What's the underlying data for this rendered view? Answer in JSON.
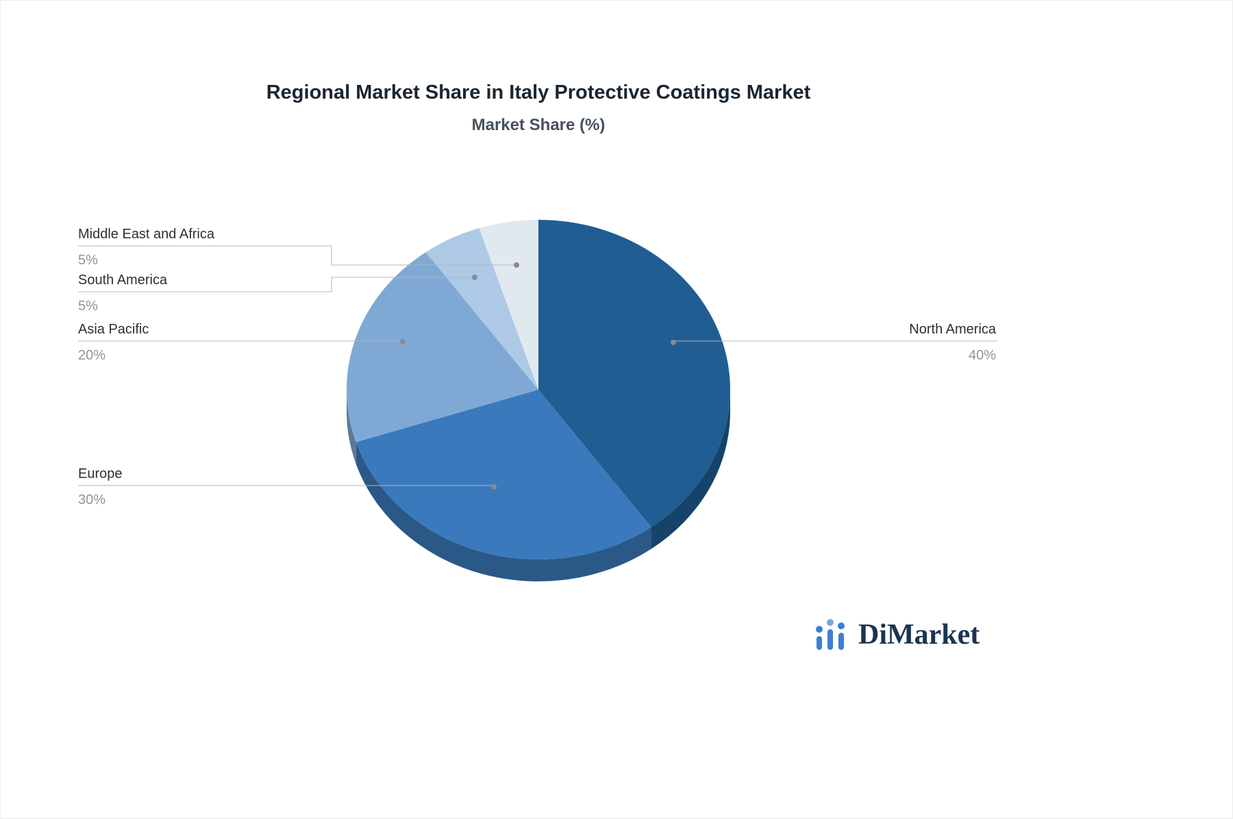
{
  "title": "Regional Market Share in Italy Protective Coatings Market",
  "subtitle": "Market Share (%)",
  "brand": {
    "name": "DiMarket",
    "icon": "bar-chart-logo-icon",
    "wordmark_color": "#1b3550",
    "icon_color": "#3b7ed2"
  },
  "chart_data": {
    "type": "pie",
    "title": "Regional Market Share in Italy Protective Coatings Market",
    "subtitle": "Market Share (%)",
    "unit": "%",
    "style": "3d-pie",
    "start_angle_deg": -90,
    "direction": "clockwise",
    "legend_position": "none",
    "labels": "callout lines with name and percent",
    "slices": [
      {
        "label": "North America",
        "value": 40,
        "percent_label": "40%",
        "color": "#205d93",
        "label_side": "right"
      },
      {
        "label": "Europe",
        "value": 30,
        "percent_label": "30%",
        "color": "#3a7abc",
        "label_side": "left"
      },
      {
        "label": "Asia Pacific",
        "value": 20,
        "percent_label": "20%",
        "color": "#7fa9d4",
        "label_side": "left"
      },
      {
        "label": "South America",
        "value": 5,
        "percent_label": "5%",
        "color": "#aec9e6",
        "label_side": "left"
      },
      {
        "label": "Middle East and Africa",
        "value": 5,
        "percent_label": "5%",
        "color": "#e2e8f0",
        "label_side": "left"
      }
    ],
    "leader_line_color": "#b5b5b5",
    "background": "#ffffff"
  }
}
